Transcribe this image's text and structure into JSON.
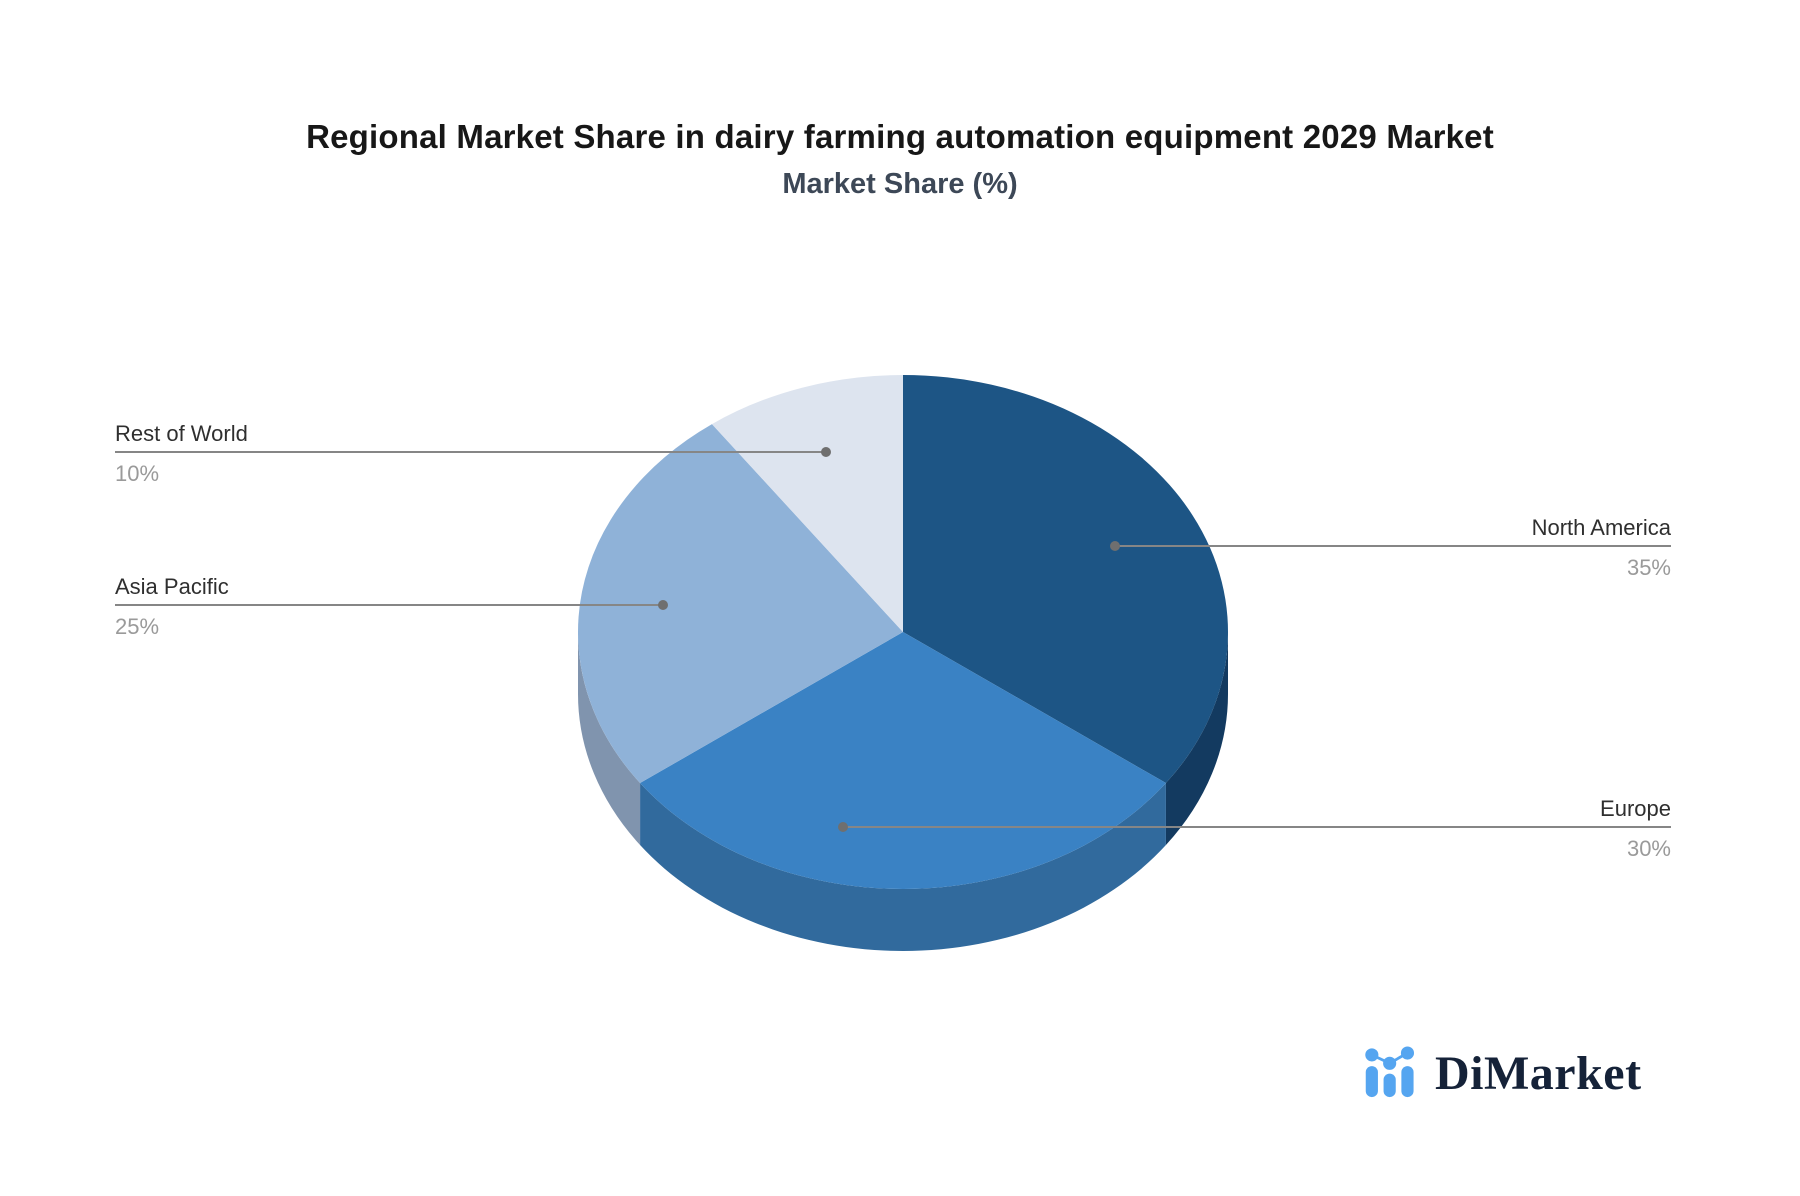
{
  "title": "Regional Market Share in dairy farming automation equipment 2029 Market",
  "subtitle": "Market Share (%)",
  "chart_data": {
    "type": "pie",
    "style": "3d",
    "title": "Regional Market Share in dairy farming automation equipment 2029 Market",
    "subtitle": "Market Share (%)",
    "unit": "%",
    "start_angle_deg": -90,
    "direction": "clockwise",
    "legend_position": "callouts",
    "slices": [
      {
        "label": "North America",
        "value": 35,
        "display": "35%",
        "color": "#1d5585",
        "side_color": "#133a60",
        "callout_side": "right"
      },
      {
        "label": "Europe",
        "value": 30,
        "display": "30%",
        "color": "#3a82c4",
        "side_color": "#316a9d",
        "callout_side": "right"
      },
      {
        "label": "Asia Pacific",
        "value": 25,
        "display": "25%",
        "color": "#8fb2d8",
        "side_color": "#8094ae",
        "callout_side": "left"
      },
      {
        "label": "Rest of World",
        "value": 10,
        "display": "10%",
        "color": "#dde4ef",
        "side_color": "#c2cbd9",
        "callout_side": "left"
      }
    ]
  },
  "branding": {
    "logo_text": "DiMarket",
    "logo_icon": "bar-chart-trend-icon"
  },
  "colors": {
    "background": "#ffffff",
    "title_text": "#171717",
    "subtitle_text": "#3d4857",
    "label_text": "#2f2f2f",
    "percent_text": "#9a9a9a",
    "leader_line": "#868686",
    "leader_dot": "#6f6f6f",
    "logo_text": "#152238",
    "logo_accent": "#55a5f0"
  }
}
